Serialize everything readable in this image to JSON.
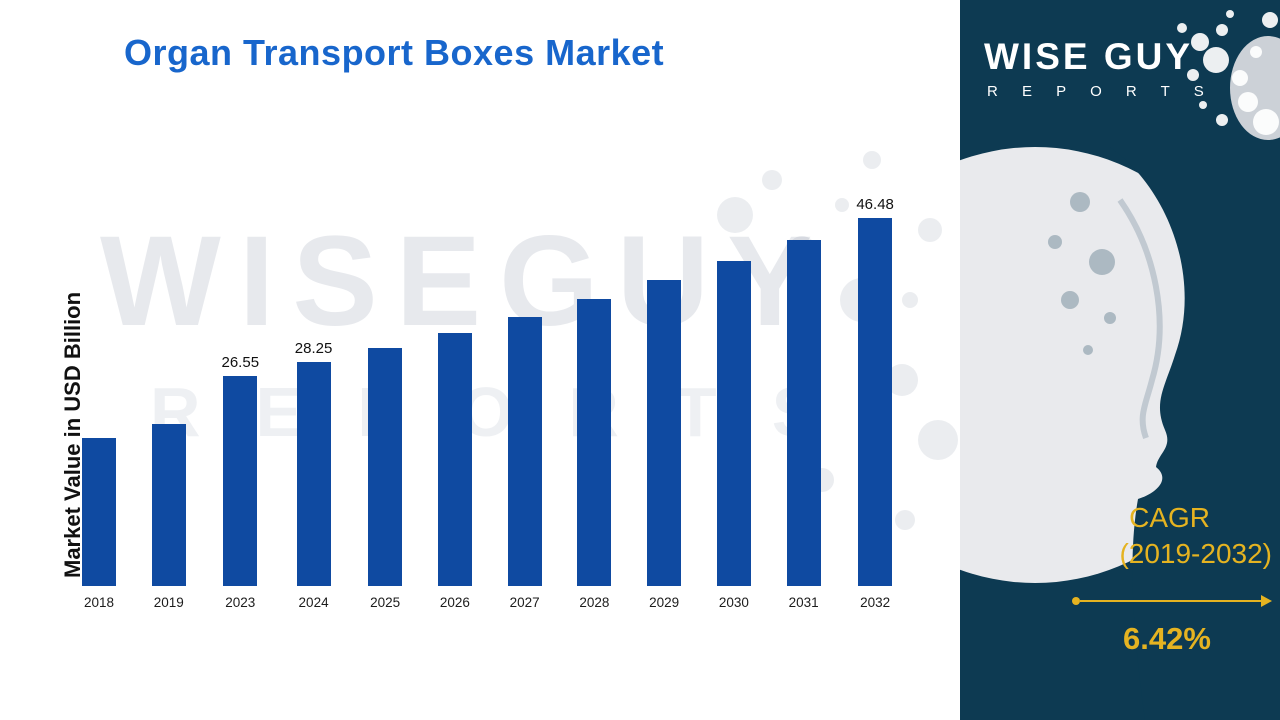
{
  "title": "Organ Transport Boxes Market",
  "y_axis_label": "Market Value in USD Billion",
  "watermark": {
    "line1": "WISEGUY",
    "line2": "REPORTS"
  },
  "logo": {
    "line1": "WISE GUY",
    "line2": "R E P O R T S"
  },
  "cagr": {
    "label": "CAGR",
    "range": "(2019-2032)",
    "value": "6.42%"
  },
  "colors": {
    "bar": "#0f4aa1",
    "title": "#1866cc",
    "accent_gold": "#e5b321",
    "sidebar_bg": "#0d3a52"
  },
  "chart_data": {
    "type": "bar",
    "title": "Organ Transport Boxes Market",
    "xlabel": "",
    "ylabel": "Market Value in USD Billion",
    "categories": [
      "2018",
      "2019",
      "2023",
      "2024",
      "2025",
      "2026",
      "2027",
      "2028",
      "2029",
      "2030",
      "2031",
      "2032"
    ],
    "values": [
      18.75,
      20.5,
      26.55,
      28.25,
      30.1,
      32.0,
      34.0,
      36.2,
      38.6,
      41.0,
      43.7,
      46.48
    ],
    "data_labels": {
      "2023": "26.55",
      "2024": "28.25",
      "2032": "46.48"
    },
    "ylim": [
      0,
      48
    ],
    "grid": false,
    "legend": false
  }
}
